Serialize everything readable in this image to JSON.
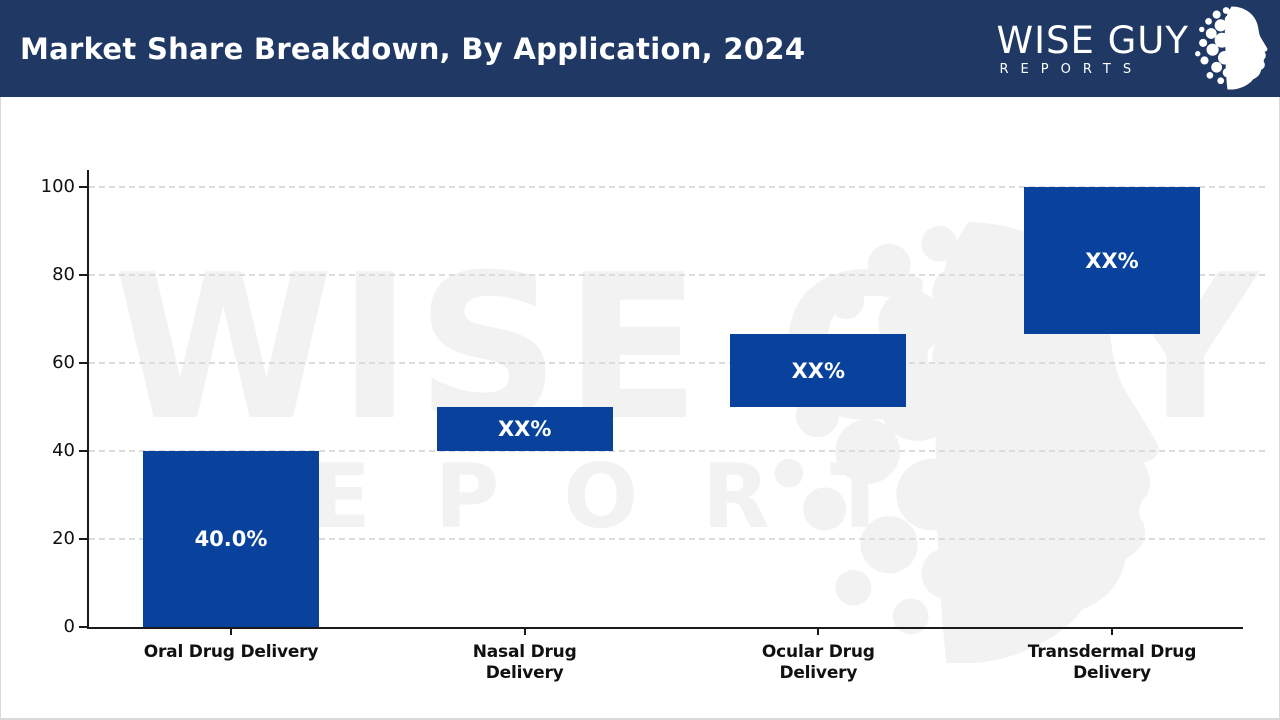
{
  "header": {
    "title": "Market Share Breakdown, By Application, 2024",
    "logo": {
      "name": "WISE GUY",
      "sub": "REPORTS"
    }
  },
  "watermark": {
    "line1": "WISE GUY",
    "line2": "REPORTS"
  },
  "chart_data": {
    "type": "bar",
    "variant": "waterfall",
    "title": "Market Share Breakdown, By Application, 2024",
    "categories": [
      "Oral Drug Delivery",
      "Nasal Drug\nDelivery",
      "Ocular Drug\nDelivery",
      "Transdermal Drug\nDelivery"
    ],
    "segments": [
      {
        "category": "Oral Drug Delivery",
        "start": 0,
        "end": 40,
        "value": 40,
        "label": "40.0%"
      },
      {
        "category": "Nasal Drug Delivery",
        "start": 40,
        "end": 50,
        "value": 10,
        "label": "XX%"
      },
      {
        "category": "Ocular Drug Delivery",
        "start": 50,
        "end": 66.5,
        "value": 16.5,
        "label": "XX%"
      },
      {
        "category": "Transdermal Drug Delivery",
        "start": 66.5,
        "end": 100,
        "value": 33.5,
        "label": "XX%"
      }
    ],
    "ylim": [
      0,
      100
    ],
    "yticks": [
      0,
      20,
      40,
      60,
      80,
      100
    ],
    "grid": "horizontal-dashed",
    "legend": "none",
    "bar_color": "#08429c",
    "axis_color": "#1a1a1a",
    "gridline_color": "#dcdcdc",
    "value_label_color": "#ffffff"
  },
  "colors": {
    "header_bg": "#1f3864",
    "body_bg": "#ffffff",
    "watermark": "#f2f2f2",
    "border": "#d9d9d9"
  }
}
